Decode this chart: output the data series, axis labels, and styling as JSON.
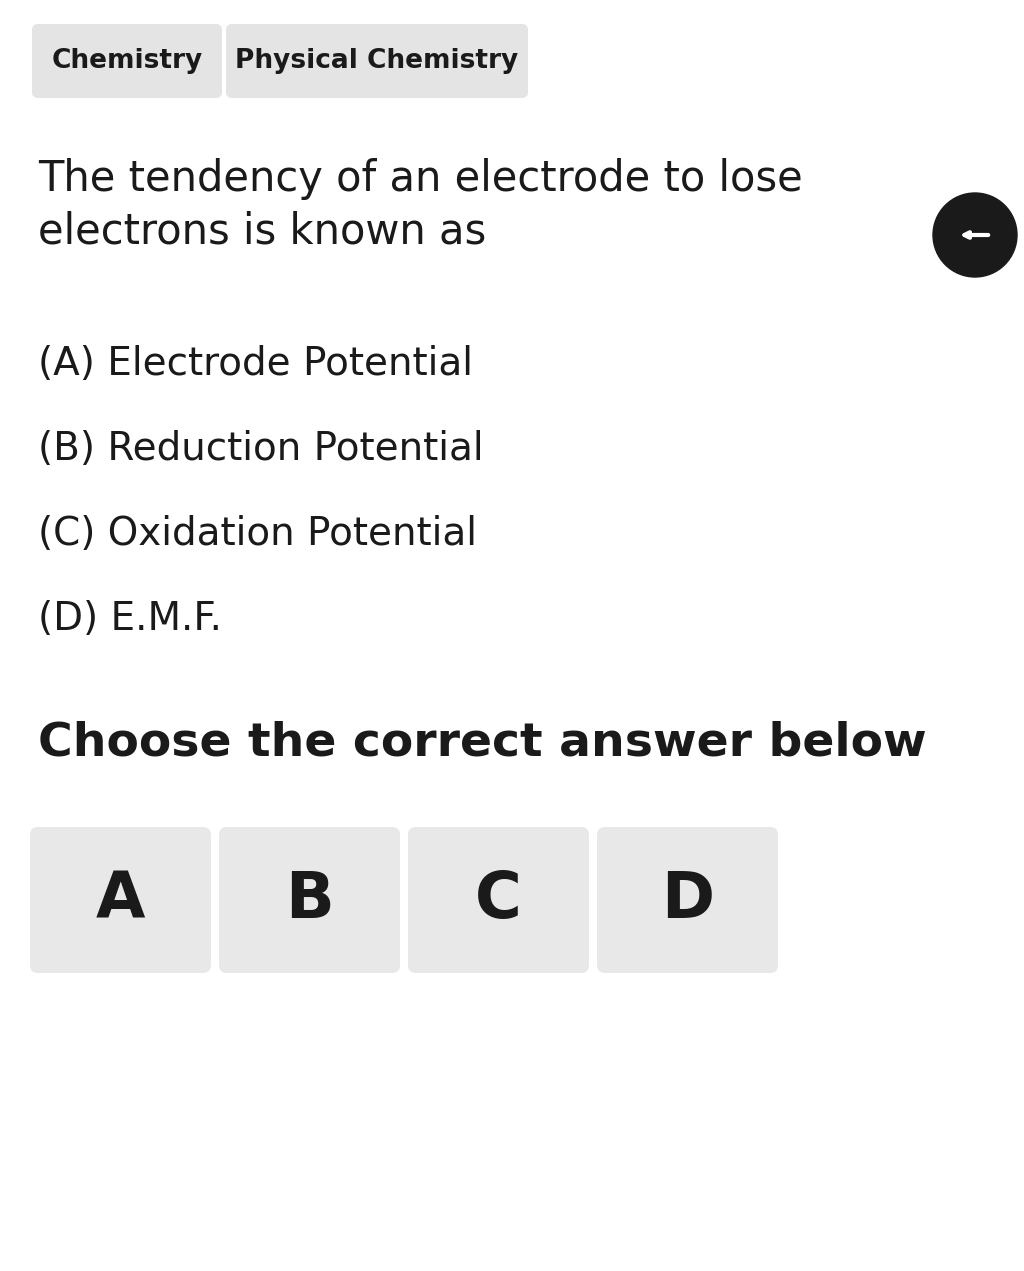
{
  "background_color": "#ffffff",
  "tag1": "Chemistry",
  "tag2": "Physical Chemistry",
  "tag_bg": "#e4e4e4",
  "tag_text_color": "#1a1a1a",
  "tag_fontsize": 19,
  "question_line1": "The tendency of an electrode to lose",
  "question_line2": "electrons is known as",
  "question_fontsize": 30,
  "question_color": "#1a1a1a",
  "options": [
    "(A) Electrode Potential",
    "(B) Reduction Potential",
    "(C) Oxidation Potential",
    "(D) E.M.F."
  ],
  "option_fontsize": 28,
  "option_color": "#1a1a1a",
  "choose_text": "Choose the correct answer below",
  "choose_fontsize": 34,
  "choose_color": "#1a1a1a",
  "buttons": [
    "A",
    "B",
    "C",
    "D"
  ],
  "button_bg": "#e8e8e8",
  "button_text_color": "#1a1a1a",
  "button_fontsize": 46,
  "fig_width": 10.24,
  "fig_height": 12.71,
  "dpi": 100
}
